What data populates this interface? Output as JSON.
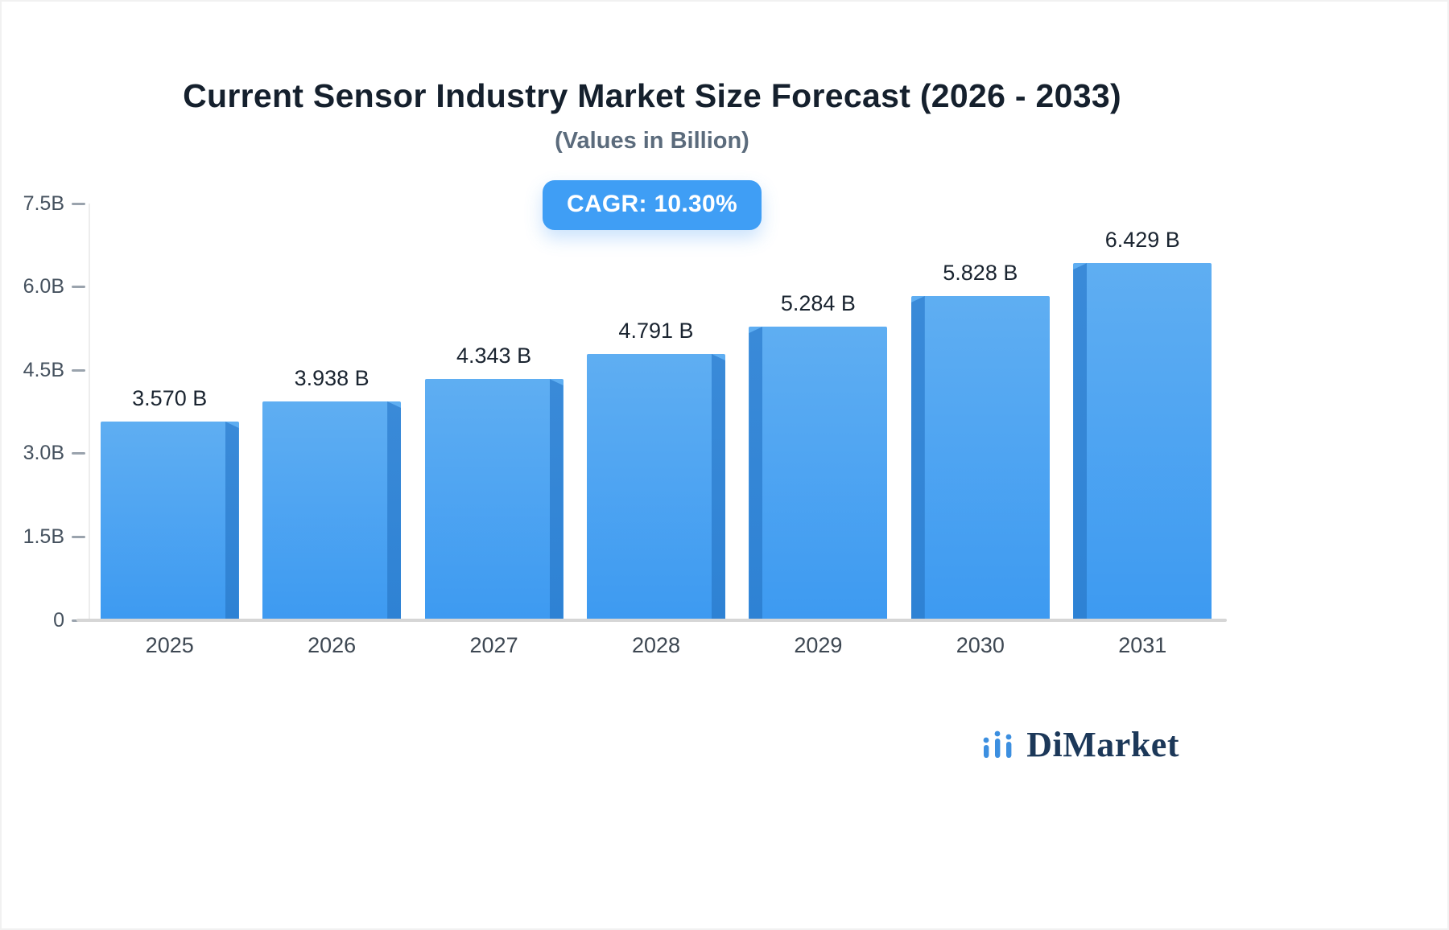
{
  "header": {
    "title": "Current Sensor Industry Market Size Forecast (2026 - 2033)",
    "subtitle": "(Values in Billion)",
    "cagr_badge": "CAGR: 10.30%"
  },
  "footer": {
    "brand": "DiMarket"
  },
  "chart_data": {
    "type": "bar",
    "title": "Current Sensor Industry Market Size Forecast (2026 - 2033)",
    "subtitle": "(Values in Billion)",
    "cagr": "10.30%",
    "unit": "Billion",
    "categories": [
      "2025",
      "2026",
      "2027",
      "2028",
      "2029",
      "2030",
      "2031"
    ],
    "values": [
      3.57,
      3.938,
      4.343,
      4.791,
      5.284,
      5.828,
      6.429
    ],
    "value_labels": [
      "3.570 B",
      "3.938 B",
      "4.343 B",
      "4.791 B",
      "5.284 B",
      "5.828 B",
      "6.429 B"
    ],
    "ylim": [
      0,
      7.5
    ],
    "yticks": [
      0,
      1.5,
      3.0,
      4.5,
      6.0,
      7.5
    ],
    "ytick_labels": [
      "0",
      "1.5B",
      "3.0B",
      "4.5B",
      "6.0B",
      "7.5B"
    ],
    "grid": false,
    "legend": false,
    "bar_face_top": "#5FAEF2",
    "bar_face_bottom": "#3D9AF1",
    "bar_side_top": "#3A8AD8",
    "bar_side": "#2E82D4"
  },
  "colors": {
    "accent": "#3F9EF5",
    "title_text": "#15202D",
    "subtitle_text": "#5B6B7C",
    "axis_text": "#45515E",
    "brand_text": "#1C3859",
    "value_text": "#1A2430"
  }
}
